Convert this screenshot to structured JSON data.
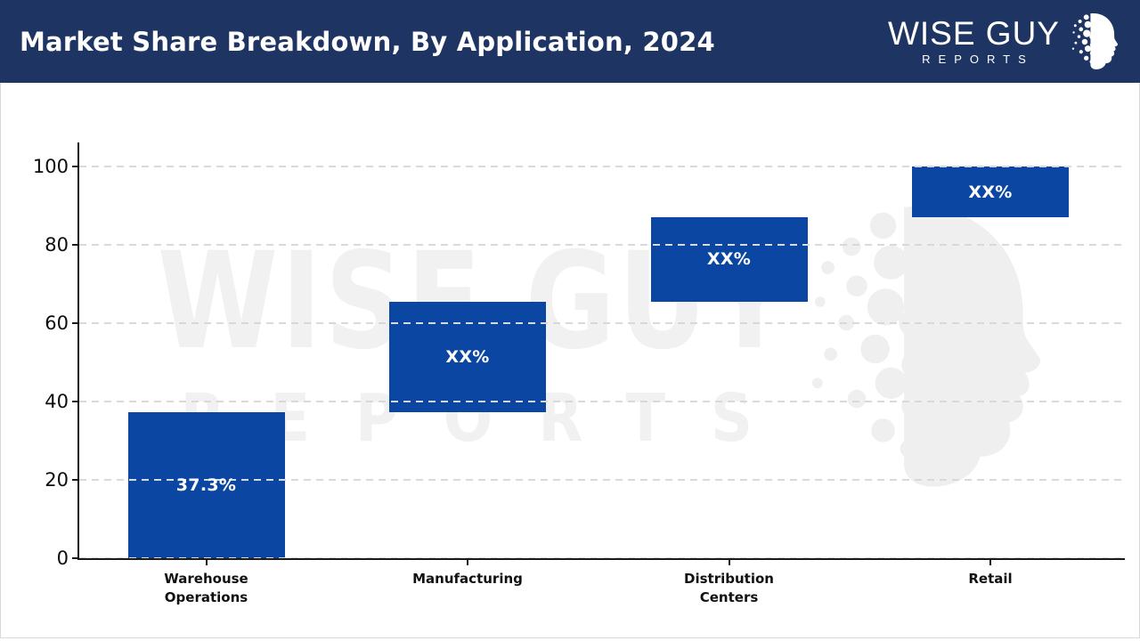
{
  "header": {
    "title": "Market Share Breakdown, By Application, 2024",
    "logo": {
      "wordmark": "WISE GUY",
      "subtext": "REPORTS"
    },
    "colors": {
      "background": "#1e3462",
      "text": "#ffffff"
    }
  },
  "watermark": {
    "line1": "WISE GUY",
    "line2": "REPORTS"
  },
  "chart_data": {
    "type": "bar",
    "subtype": "waterfall",
    "title": "Market Share Breakdown, By Application, 2024",
    "categories": [
      "Warehouse Operations",
      "Manufacturing",
      "Distribution Centers",
      "Retail"
    ],
    "bars": [
      {
        "category": "Warehouse Operations",
        "category_lines": [
          "Warehouse",
          "Operations"
        ],
        "start": 0,
        "end": 37.3,
        "label": "37.3%"
      },
      {
        "category": "Manufacturing",
        "category_lines": [
          "Manufacturing"
        ],
        "start": 37.3,
        "end": 65.5,
        "label": "XX%"
      },
      {
        "category": "Distribution Centers",
        "category_lines": [
          "Distribution",
          "Centers"
        ],
        "start": 65.5,
        "end": 87.0,
        "label": "XX%"
      },
      {
        "category": "Retail",
        "category_lines": [
          "Retail"
        ],
        "start": 87.0,
        "end": 100.0,
        "label": "XX%"
      }
    ],
    "yticks": [
      0,
      20,
      40,
      60,
      80,
      100
    ],
    "ylim": [
      0,
      106
    ],
    "xlabel": "",
    "ylabel": "",
    "legend": null,
    "grid": {
      "axis": "y",
      "style": "dashed",
      "color": "#d9d9d9",
      "above_bars": true
    },
    "colors": {
      "bar": "#0b47a2",
      "bar_label": "#ffffff",
      "axis": "#1a1a1a",
      "tick_label": "#0d0d0d"
    }
  }
}
